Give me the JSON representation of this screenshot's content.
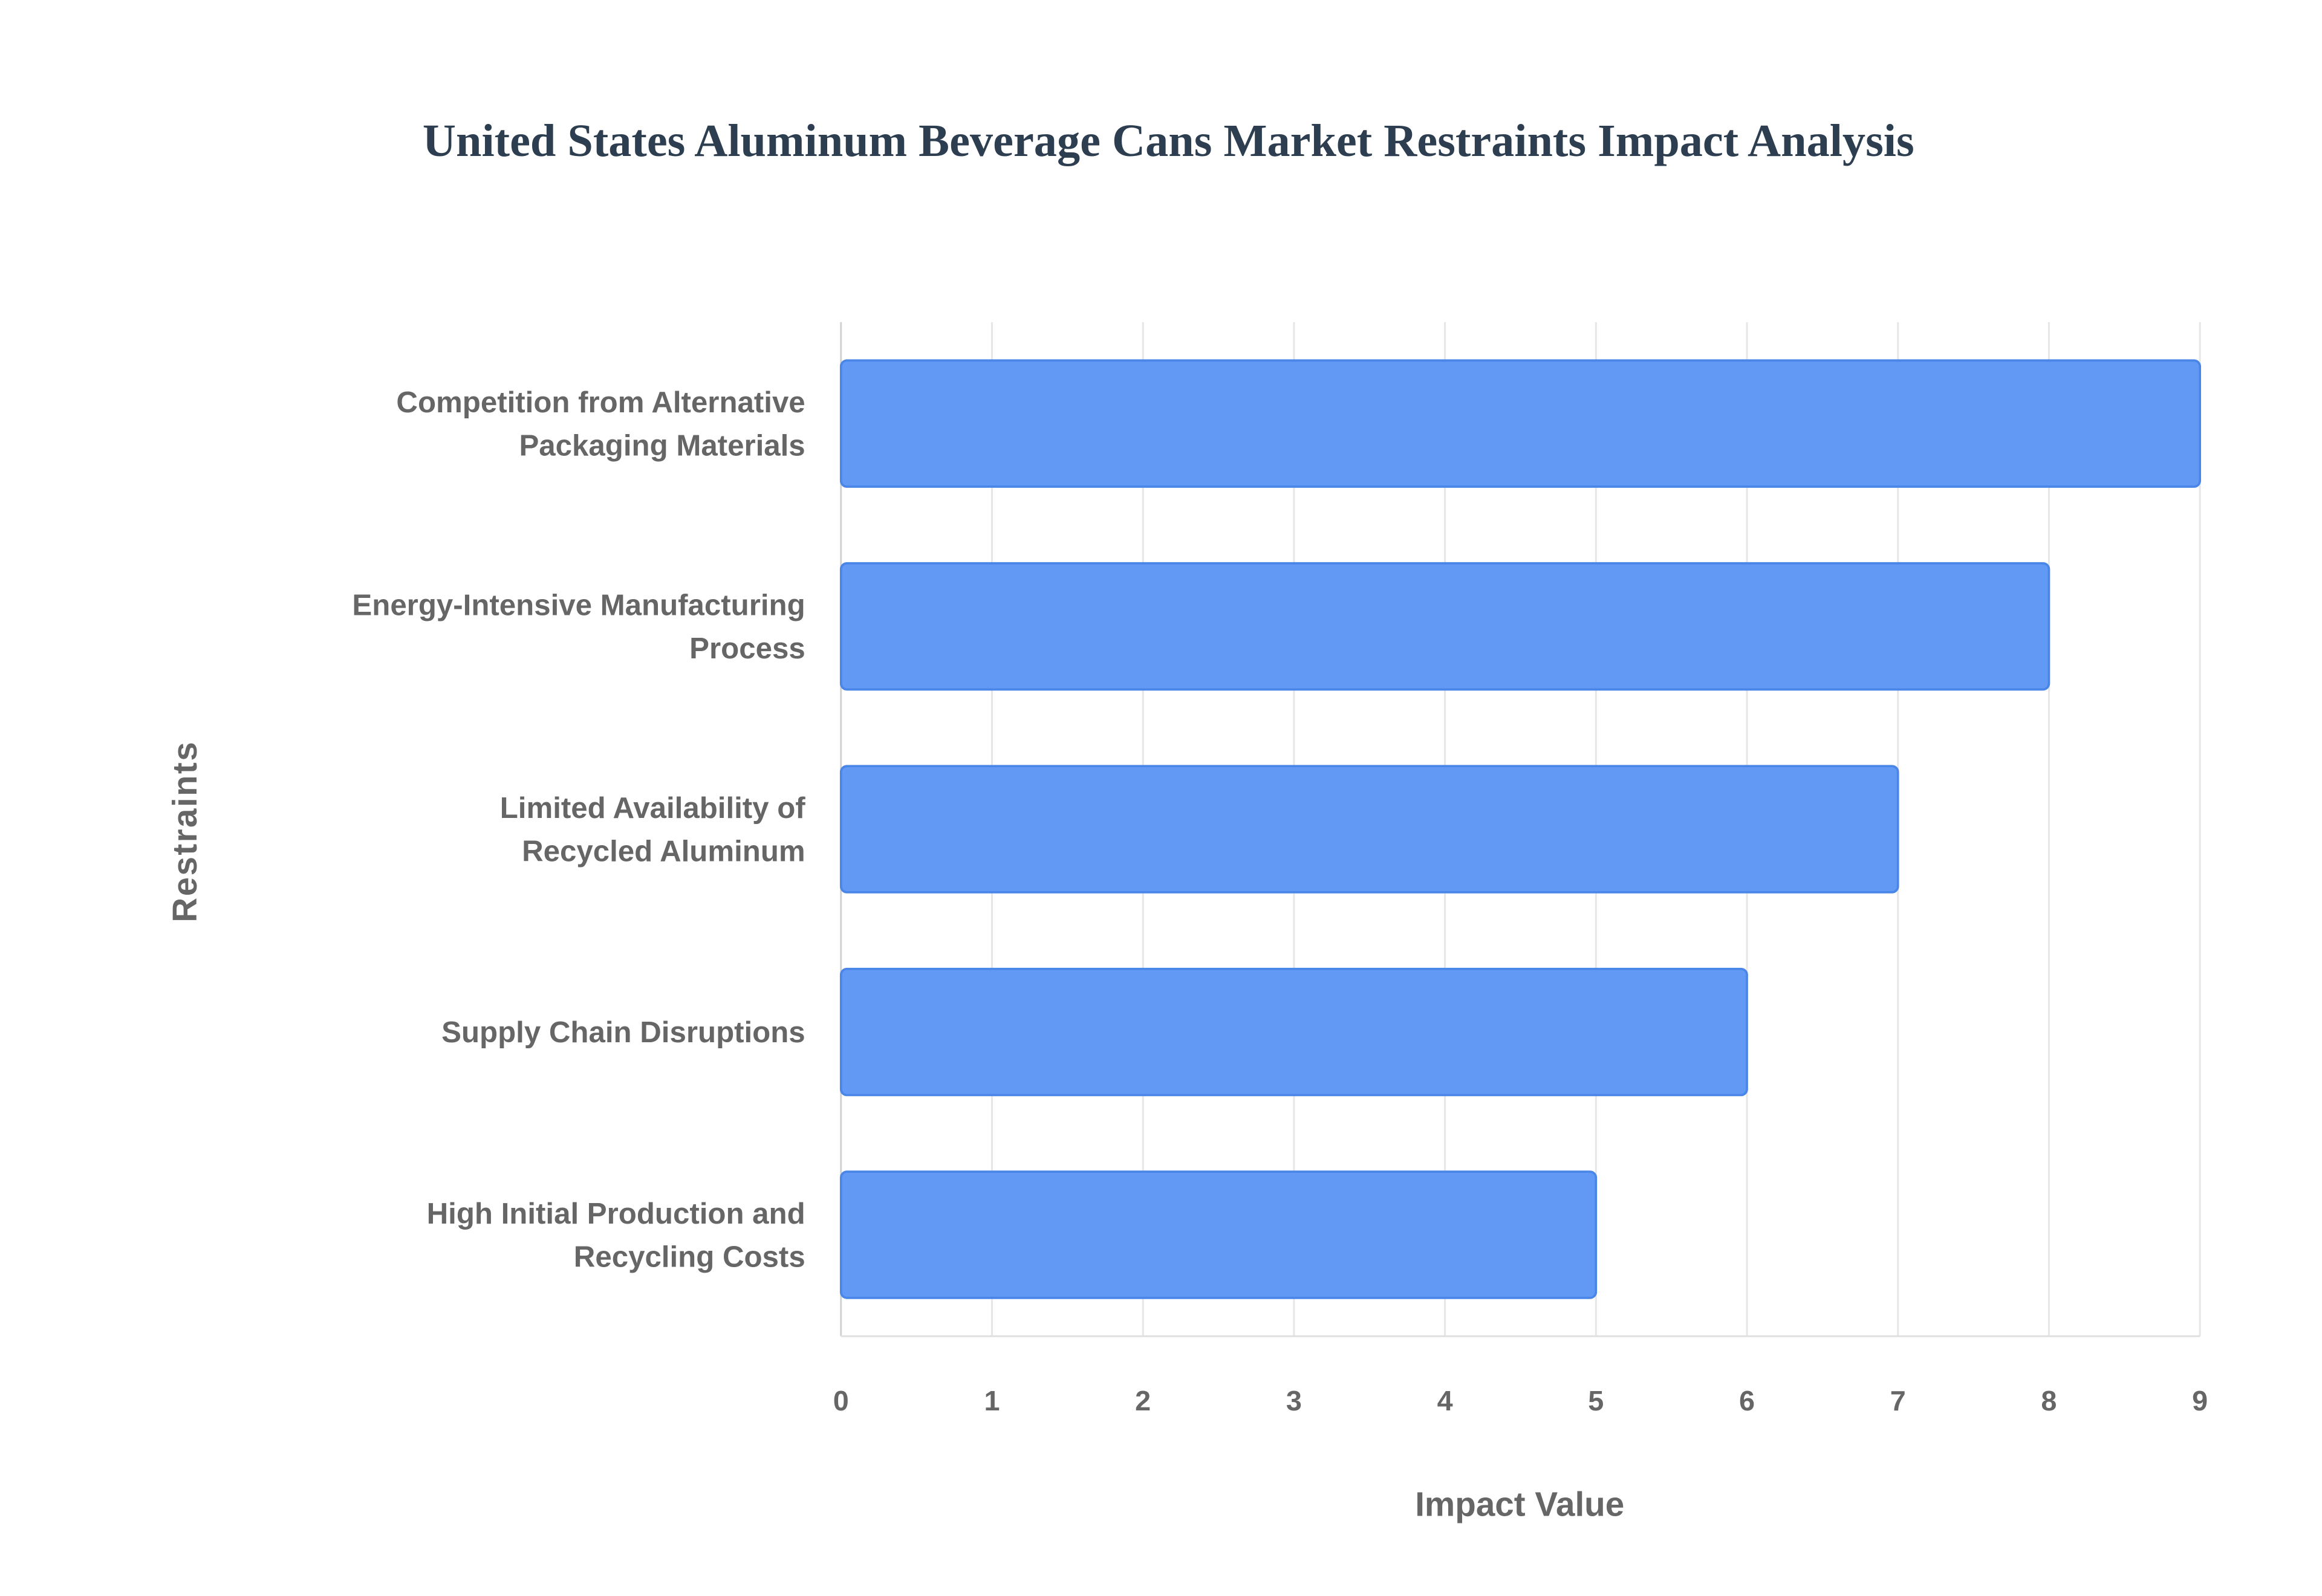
{
  "chart_data": {
    "type": "bar",
    "orientation": "horizontal",
    "title": "United States Aluminum Beverage Cans Market Restraints Impact Analysis",
    "xlabel": "Impact Value",
    "ylabel": "Restraints",
    "categories": [
      [
        "Competition from Alternative",
        "Packaging Materials"
      ],
      [
        "Energy-Intensive Manufacturing",
        "Process"
      ],
      [
        "Limited Availability of",
        "Recycled Aluminum"
      ],
      [
        "Supply Chain Disruptions"
      ],
      [
        "High Initial Production and",
        "Recycling Costs"
      ]
    ],
    "values": [
      9,
      8,
      7,
      6,
      5
    ],
    "xlim": [
      0,
      9
    ],
    "xticks": [
      "0",
      "1",
      "2",
      "3",
      "4",
      "5",
      "6",
      "7",
      "8",
      "9"
    ],
    "grid": true,
    "legend": "none",
    "colors": {
      "bar": "#6199f5",
      "bar_border": "#4a86e8",
      "grid": "#e6e6e6"
    }
  }
}
